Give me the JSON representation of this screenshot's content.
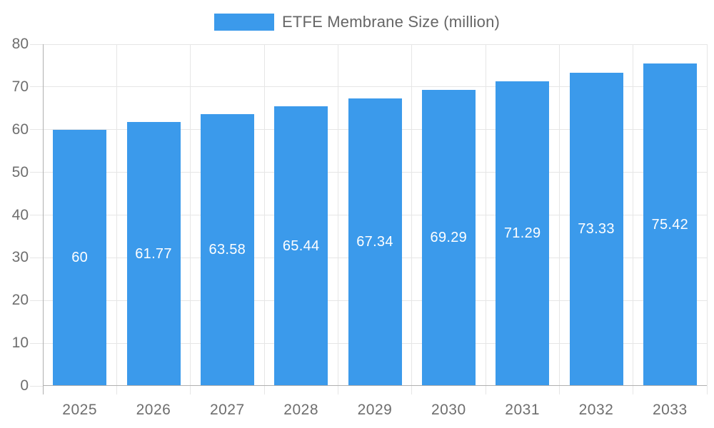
{
  "legend": {
    "label": "ETFE Membrane Size (million)",
    "position": "top"
  },
  "chart_data": {
    "type": "bar",
    "title": "",
    "xlabel": "",
    "ylabel": "",
    "series_name": "ETFE Membrane Size (million)",
    "categories": [
      "2025",
      "2026",
      "2027",
      "2028",
      "2029",
      "2030",
      "2031",
      "2032",
      "2033"
    ],
    "values": [
      60,
      61.77,
      63.58,
      65.44,
      67.34,
      69.29,
      71.29,
      73.33,
      75.42
    ],
    "value_labels": [
      "60",
      "61.77",
      "63.58",
      "65.44",
      "67.34",
      "69.29",
      "71.29",
      "73.33",
      "75.42"
    ],
    "ylim": [
      0,
      80
    ],
    "ytick_step": 10,
    "ytick_labels": [
      "0",
      "10",
      "20",
      "30",
      "40",
      "50",
      "60",
      "70",
      "80"
    ],
    "grid": true,
    "legend_position": "top",
    "bar_color": "#3B9AEB",
    "bar_label_color": "#FFFFFF",
    "axis_text_color": "#6E6E6E",
    "legend_text_color": "#666666",
    "grid_color": "#E6E6E6",
    "axis_line_color": "#B0B0B0",
    "background_color": "#FFFFFF"
  }
}
